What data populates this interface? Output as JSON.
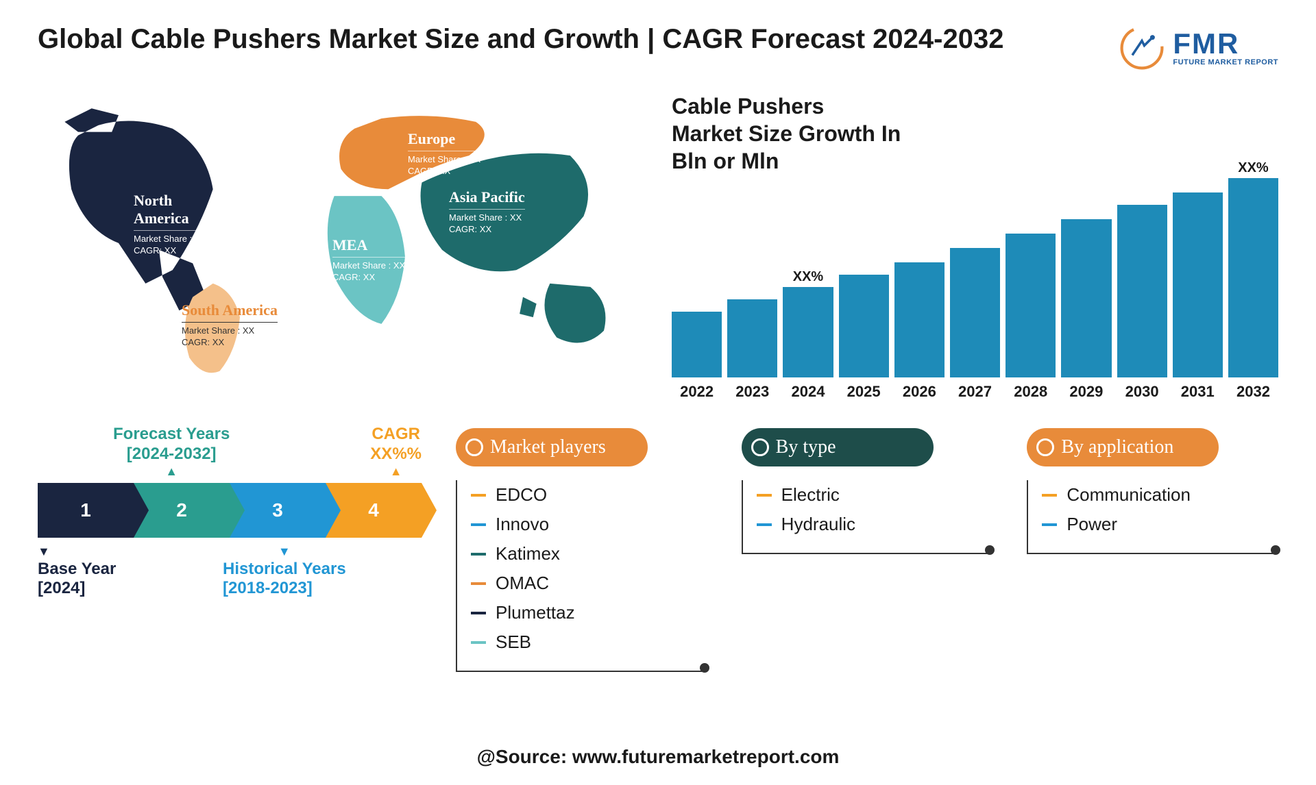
{
  "title": "Global Cable Pushers Market Size and Growth | CAGR Forecast 2024-2032",
  "logo": {
    "fmr": "FMR",
    "sub": "FUTURE MARKET REPORT"
  },
  "map": {
    "regions": [
      {
        "key": "na",
        "name": "North\nAmerica",
        "share": "Market Share : XX",
        "cagr": "CAGR: XX",
        "color": "#1a2540"
      },
      {
        "key": "sa",
        "name": "South America",
        "share": "Market Share : XX",
        "cagr": "CAGR: XX",
        "color": "#f4c08a"
      },
      {
        "key": "eu",
        "name": "Europe",
        "share": "Market Share : XX",
        "cagr": "CAGR: XX",
        "color": "#e88b3a"
      },
      {
        "key": "mea",
        "name": "MEA",
        "share": "Market Share : XX",
        "cagr": "CAGR: XX",
        "color": "#6bc4c4"
      },
      {
        "key": "ap",
        "name": "Asia Pacific",
        "share": "Market Share : XX",
        "cagr": "CAGR: XX",
        "color": "#1e6b6b"
      }
    ]
  },
  "bar_chart": {
    "title": "Cable Pushers\nMarket Size Growth In\nBln or Mln",
    "bar_color": "#1e8bb8",
    "years": [
      "2022",
      "2023",
      "2024",
      "2025",
      "2026",
      "2027",
      "2028",
      "2029",
      "2030",
      "2031",
      "2032"
    ],
    "heights_pct": [
      32,
      38,
      44,
      50,
      56,
      63,
      70,
      77,
      84,
      90,
      97
    ],
    "top_labels": {
      "2024": "XX%",
      "2032": "XX%"
    }
  },
  "timeline": {
    "items": [
      {
        "num": "1",
        "color": "#1a2540",
        "label": "Base Year\n[2024]",
        "label_color": "#1a2540",
        "pos": "below"
      },
      {
        "num": "2",
        "color": "#2a9d8f",
        "label": "Forecast Years\n[2024-2032]",
        "label_color": "#2a9d8f",
        "pos": "above"
      },
      {
        "num": "3",
        "color": "#2196d4",
        "label": "Historical Years\n[2018-2023]",
        "label_color": "#2196d4",
        "pos": "below"
      },
      {
        "num": "4",
        "color": "#f4a024",
        "label": "CAGR\nXX%%",
        "label_color": "#f4a024",
        "pos": "above"
      }
    ]
  },
  "categories": [
    {
      "title": "Market players",
      "pill_color": "orange",
      "items": [
        {
          "label": "EDCO",
          "dash": "#f4a024"
        },
        {
          "label": "Innovo",
          "dash": "#2196d4"
        },
        {
          "label": "Katimex",
          "dash": "#1e6b6b"
        },
        {
          "label": "OMAC",
          "dash": "#e88b3a"
        },
        {
          "label": "Plumettaz",
          "dash": "#1a2540"
        },
        {
          "label": "SEB",
          "dash": "#6bc4c4"
        }
      ]
    },
    {
      "title": "By type",
      "pill_color": "teal",
      "items": [
        {
          "label": "Electric",
          "dash": "#f4a024"
        },
        {
          "label": "Hydraulic",
          "dash": "#2196d4"
        }
      ]
    },
    {
      "title": "By application",
      "pill_color": "orange",
      "items": [
        {
          "label": "Communication",
          "dash": "#f4a024"
        },
        {
          "label": "Power",
          "dash": "#2196d4"
        }
      ]
    }
  ],
  "source": "@Source: www.futuremarketreport.com"
}
